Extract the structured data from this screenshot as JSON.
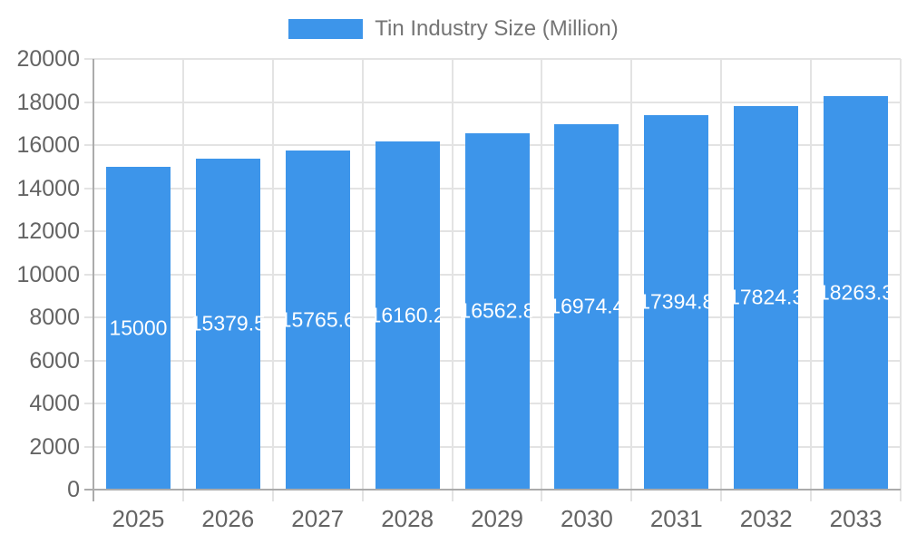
{
  "legend": {
    "label": "Tin Industry Size (Million)"
  },
  "colors": {
    "bar": "#3d95ea",
    "bar_label_text": "#ffffff",
    "axis_line": "#ababab",
    "grid_line": "#e3e3e3",
    "axis_text": "#646464",
    "legend_text": "#757575",
    "background": "#ffffff"
  },
  "chart_data": {
    "type": "bar",
    "title": "Tin Industry Size (Million)",
    "categories": [
      "2025",
      "2026",
      "2027",
      "2028",
      "2029",
      "2030",
      "2031",
      "2032",
      "2033"
    ],
    "series": [
      {
        "name": "Tin Industry Size (Million)",
        "values": [
          15000,
          15379.5,
          15765.6,
          16160.2,
          16562.8,
          16974.4,
          17394.8,
          17824.3,
          18263.3
        ]
      }
    ],
    "bar_labels": [
      "15000",
      "15379.5",
      "15765.6",
      "16160.2",
      "16562.8",
      "16974.4",
      "17394.8",
      "17824.3",
      "18263.3"
    ],
    "xlabel": "",
    "ylabel": "",
    "ylim": [
      0,
      20000
    ],
    "y_tick_step": 2000,
    "y_tick_labels": [
      "0",
      "2000",
      "4000",
      "6000",
      "8000",
      "10000",
      "12000",
      "14000",
      "16000",
      "18000",
      "20000"
    ],
    "grid": true,
    "legend_position": "top-center",
    "value_label_style": "white-centered-inside-bar"
  }
}
